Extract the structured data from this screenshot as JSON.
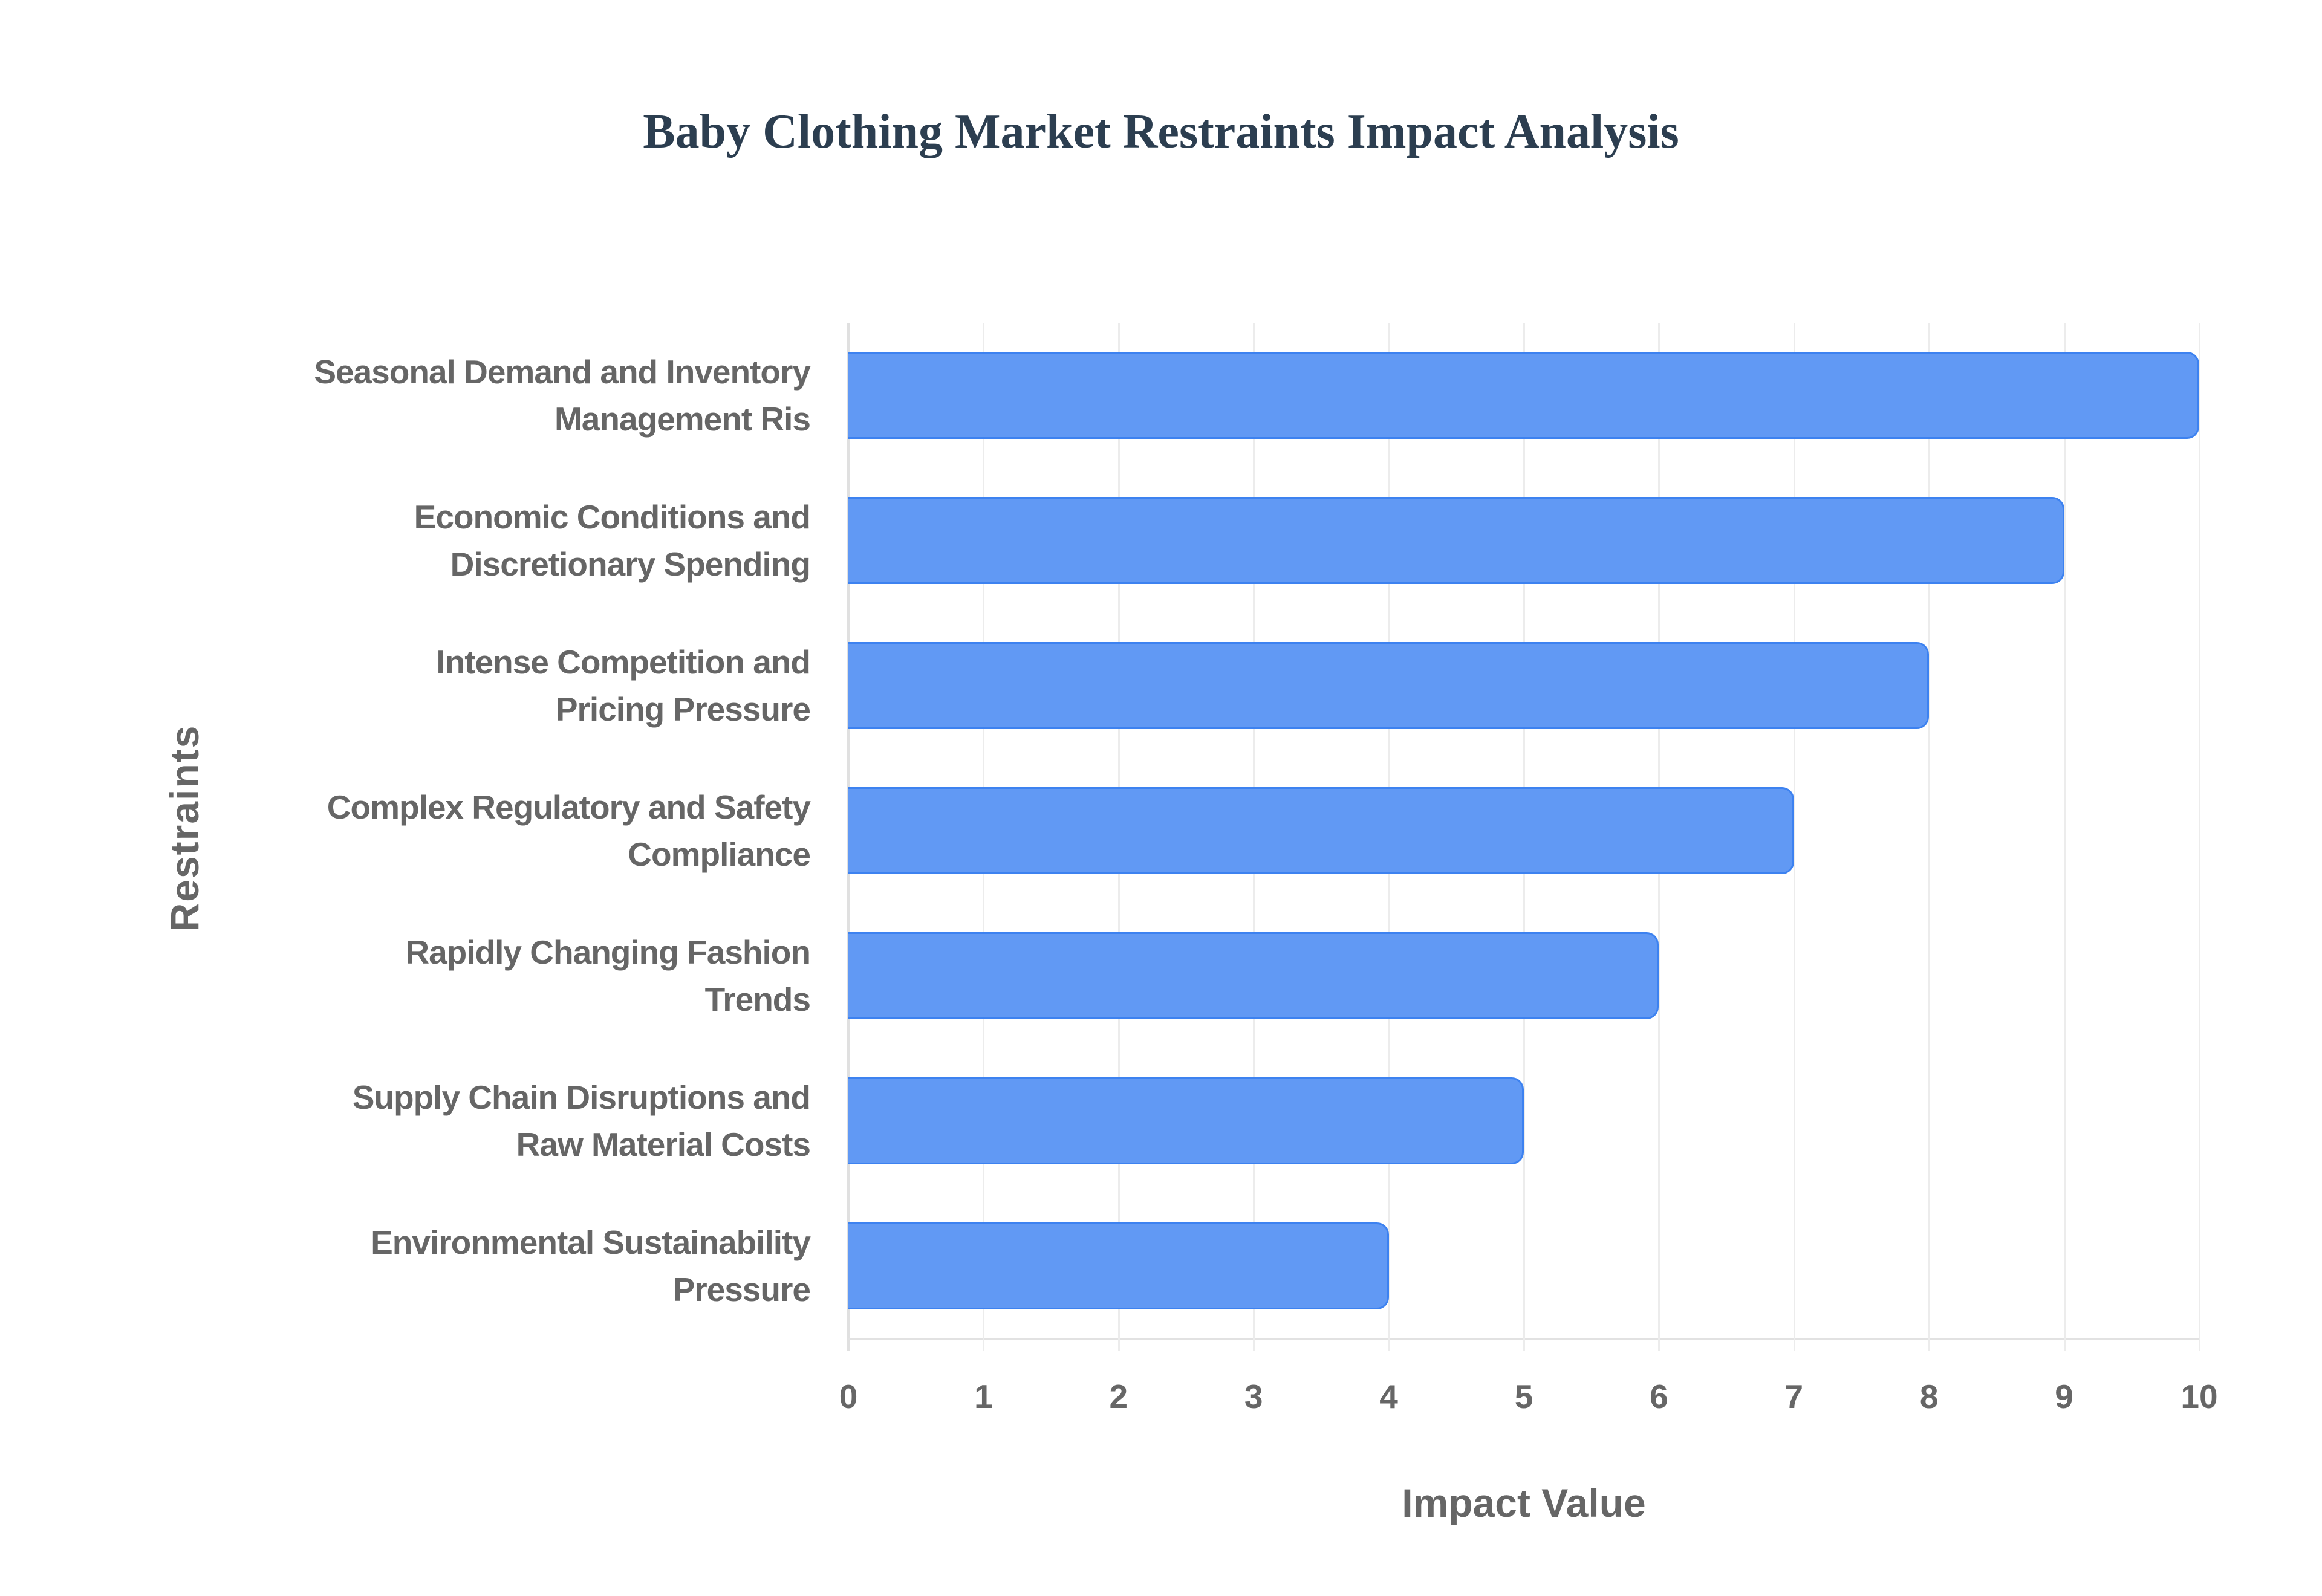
{
  "chart_data": {
    "type": "bar",
    "orientation": "horizontal",
    "title": "Baby Clothing Market Restraints Impact Analysis",
    "xlabel": "Impact Value",
    "ylabel": "Restraints",
    "xlim": [
      0,
      10
    ],
    "x_ticks": [
      "0",
      "1",
      "2",
      "3",
      "4",
      "5",
      "6",
      "7",
      "8",
      "9",
      "10"
    ],
    "grid": true,
    "legend": null,
    "categories": [
      "Seasonal Demand and Inventory Management Ris",
      "Economic Conditions and Discretionary Spending",
      "Intense Competition and Pricing Pressure",
      "Complex Regulatory and Safety Compliance",
      "Rapidly Changing Fashion Trends",
      "Supply Chain Disruptions and Raw Material Costs",
      "Environmental Sustainability Pressure"
    ],
    "category_lines": [
      [
        "Seasonal Demand and Inventory",
        "Management Ris"
      ],
      [
        "Economic Conditions and",
        "Discretionary Spending"
      ],
      [
        "Intense Competition and",
        "Pricing Pressure"
      ],
      [
        "Complex Regulatory and Safety",
        "Compliance"
      ],
      [
        "Rapidly Changing Fashion",
        "Trends"
      ],
      [
        "Supply Chain Disruptions and",
        "Raw Material Costs"
      ],
      [
        "Environmental Sustainability",
        "Pressure"
      ]
    ],
    "values": [
      10,
      9,
      8,
      7,
      6,
      5,
      4
    ],
    "colors": {
      "bar_fill": "#6199f4",
      "bar_border": "#3d82f0",
      "title": "#2c3e50",
      "axis_text": "#666666",
      "grid": "#ececec"
    }
  }
}
